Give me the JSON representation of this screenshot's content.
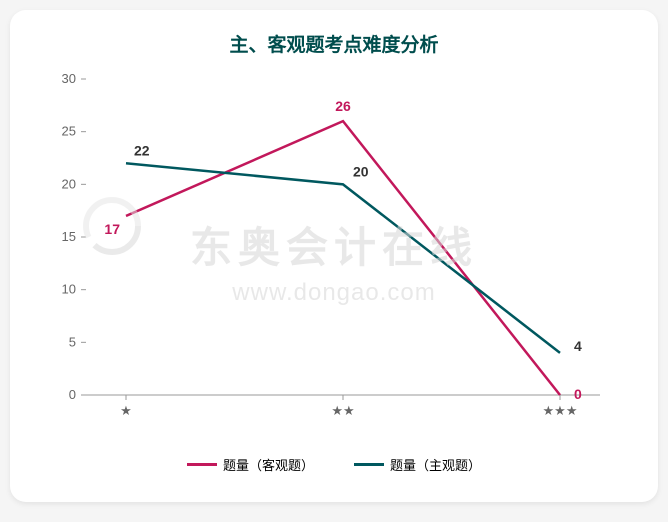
{
  "chart": {
    "type": "line",
    "title": "主、客观题考点难度分析",
    "title_color": "#004d4d",
    "title_fontsize": 19,
    "background_color": "#ffffff",
    "plot_border_color": "#999999",
    "categories": [
      "★",
      "★★",
      "★★★"
    ],
    "ylim": [
      0,
      30
    ],
    "ytick_step": 5,
    "series": [
      {
        "name": "题量（客观题）",
        "color": "#c2185b",
        "values": [
          17,
          26,
          0
        ],
        "line_width": 2.5,
        "label_color": "#c2185b"
      },
      {
        "name": "题量（主观题）",
        "color": "#00585f",
        "values": [
          22,
          20,
          4
        ],
        "line_width": 2.5,
        "label_color": "#333333"
      }
    ],
    "legend_fontsize": 13,
    "axis_label_color": "#666666",
    "watermark": {
      "line1": "东奥会计在线",
      "line2": "www.dongao.com",
      "color": "#d7d7d7"
    }
  }
}
